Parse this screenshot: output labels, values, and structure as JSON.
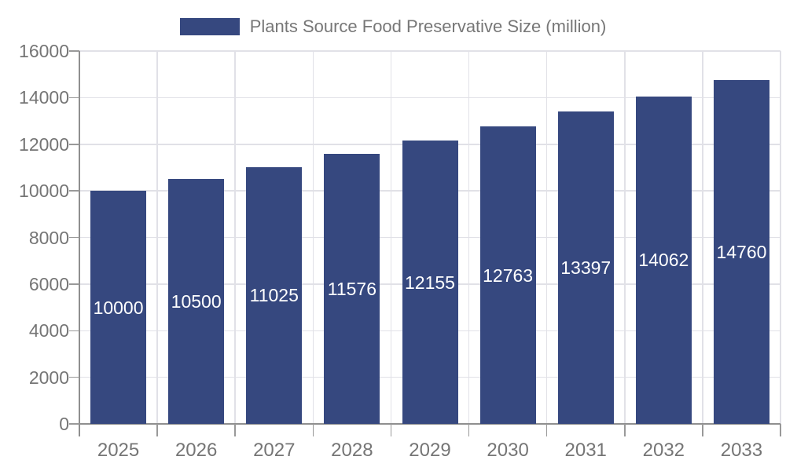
{
  "chart_data": {
    "type": "bar",
    "title": "Plants Source Food Preservative Size (million)",
    "legend": [
      "Plants Source Food Preservative Size (million)"
    ],
    "legend_position": "top-center",
    "categories": [
      "2025",
      "2026",
      "2027",
      "2028",
      "2029",
      "2030",
      "2031",
      "2032",
      "2033"
    ],
    "values": [
      10000,
      10500,
      11025,
      11576,
      12155,
      12763,
      13397,
      14062,
      14760
    ],
    "value_labels": [
      "10000",
      "10500",
      "11025",
      "11576",
      "12155",
      "12763",
      "13397",
      "14062",
      "14760"
    ],
    "xlabel": "",
    "ylabel": "",
    "ylim": [
      0,
      16000
    ],
    "ytick_step": 2000,
    "ytick_labels": [
      "0",
      "2000",
      "4000",
      "6000",
      "8000",
      "10000",
      "12000",
      "14000",
      "16000"
    ],
    "grid": true,
    "colors": {
      "bar": "#36487F",
      "value_label": "#FFFFFF",
      "axis_text": "#757575",
      "legend_text": "#777777",
      "grid_line": "#E1E1E7",
      "axis_line": "#8F8F8F",
      "tick": "#999999",
      "background": "#FFFFFF"
    }
  }
}
